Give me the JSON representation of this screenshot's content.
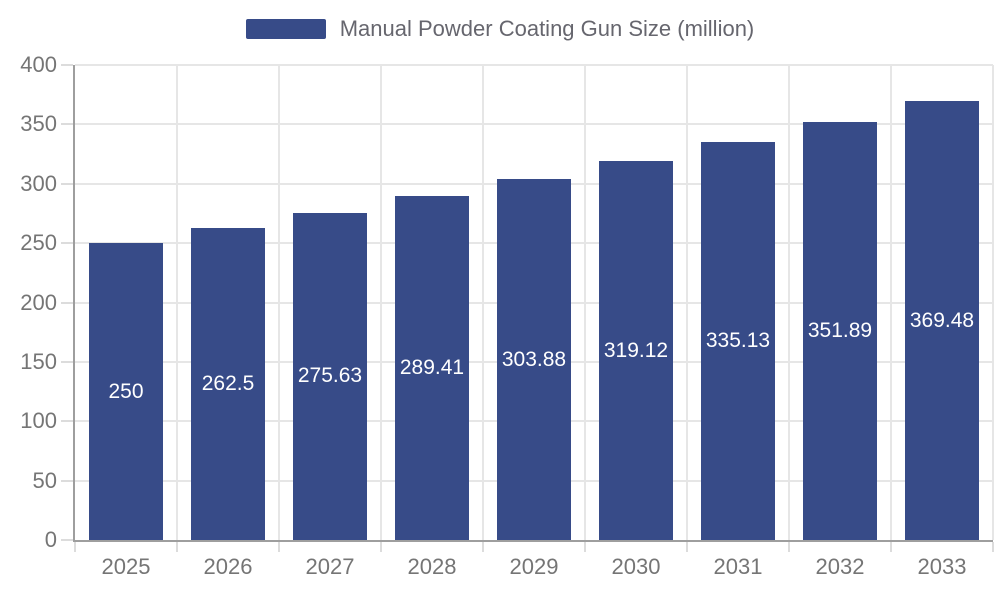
{
  "legend": {
    "items": [
      {
        "label": "Manual Powder Coating Gun Size (million)",
        "color": "#374B88"
      }
    ]
  },
  "chart_data": {
    "type": "bar",
    "title": "Manual Powder Coating Gun Size (million)",
    "categories": [
      "2025",
      "2026",
      "2027",
      "2028",
      "2029",
      "2030",
      "2031",
      "2032",
      "2033"
    ],
    "series": [
      {
        "name": "Manual Powder Coating Gun Size (million)",
        "values": [
          250,
          262.5,
          275.63,
          289.41,
          303.88,
          319.12,
          335.13,
          351.89,
          369.48
        ]
      }
    ],
    "value_labels": [
      "250",
      "262.5",
      "275.63",
      "289.41",
      "303.88",
      "319.12",
      "335.13",
      "351.89",
      "369.48"
    ],
    "xlabel": "",
    "ylabel": "",
    "ylim": [
      0,
      400
    ],
    "yticks": [
      0,
      50,
      100,
      150,
      200,
      250,
      300,
      350,
      400
    ],
    "grid": true,
    "legend_position": "top",
    "colors": {
      "bar": "#374B88",
      "bar_label": "#ffffff",
      "axis": "#9e9e9e",
      "gridline": "#e6e6e6",
      "tick": "#dcdcdc",
      "tick_label": "#757575",
      "legend_text": "#66666e"
    }
  }
}
